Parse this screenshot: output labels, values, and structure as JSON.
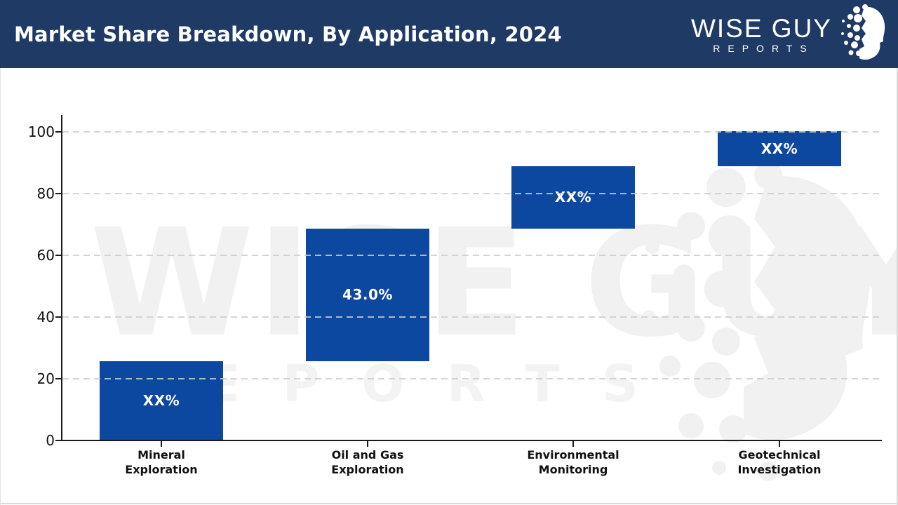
{
  "header": {
    "title": "Market Share Breakdown, By Application, 2024",
    "logo": {
      "brand": "WISE GUY",
      "sub": "REPORTS"
    }
  },
  "watermark": {
    "brand": "WISE GUY",
    "sub": "REPORTS"
  },
  "colors": {
    "header_bg": "#1f3a64",
    "bar_blue": "#0c47a0",
    "grid": "#cdcdcd",
    "axis": "#1a1a1a",
    "text": "#111111"
  },
  "chart_data": {
    "type": "bar",
    "subtype": "waterfall",
    "title": "Market Share Breakdown, By Application, 2024",
    "xlabel": "",
    "ylabel": "",
    "ylim": [
      0,
      100
    ],
    "yticks": [
      0,
      20,
      40,
      60,
      80,
      100
    ],
    "grid": true,
    "legend": null,
    "categories": [
      {
        "line1": "Mineral",
        "line2": "Exploration"
      },
      {
        "line1": "Oil and Gas",
        "line2": "Exploration"
      },
      {
        "line1": "Environmental",
        "line2": "Monitoring"
      },
      {
        "line1": "Geotechnical",
        "line2": "Investigation"
      }
    ],
    "segments": [
      {
        "category": "Mineral Exploration",
        "start": 0,
        "end": 25.5,
        "label": "XX%"
      },
      {
        "category": "Oil and Gas Exploration",
        "start": 25.5,
        "end": 68.5,
        "label": "43.0%"
      },
      {
        "category": "Environmental Monitoring",
        "start": 68.5,
        "end": 88.6,
        "label": "XX%"
      },
      {
        "category": "Geotechnical Investigation",
        "start": 88.6,
        "end": 100,
        "label": "XX%"
      }
    ]
  }
}
